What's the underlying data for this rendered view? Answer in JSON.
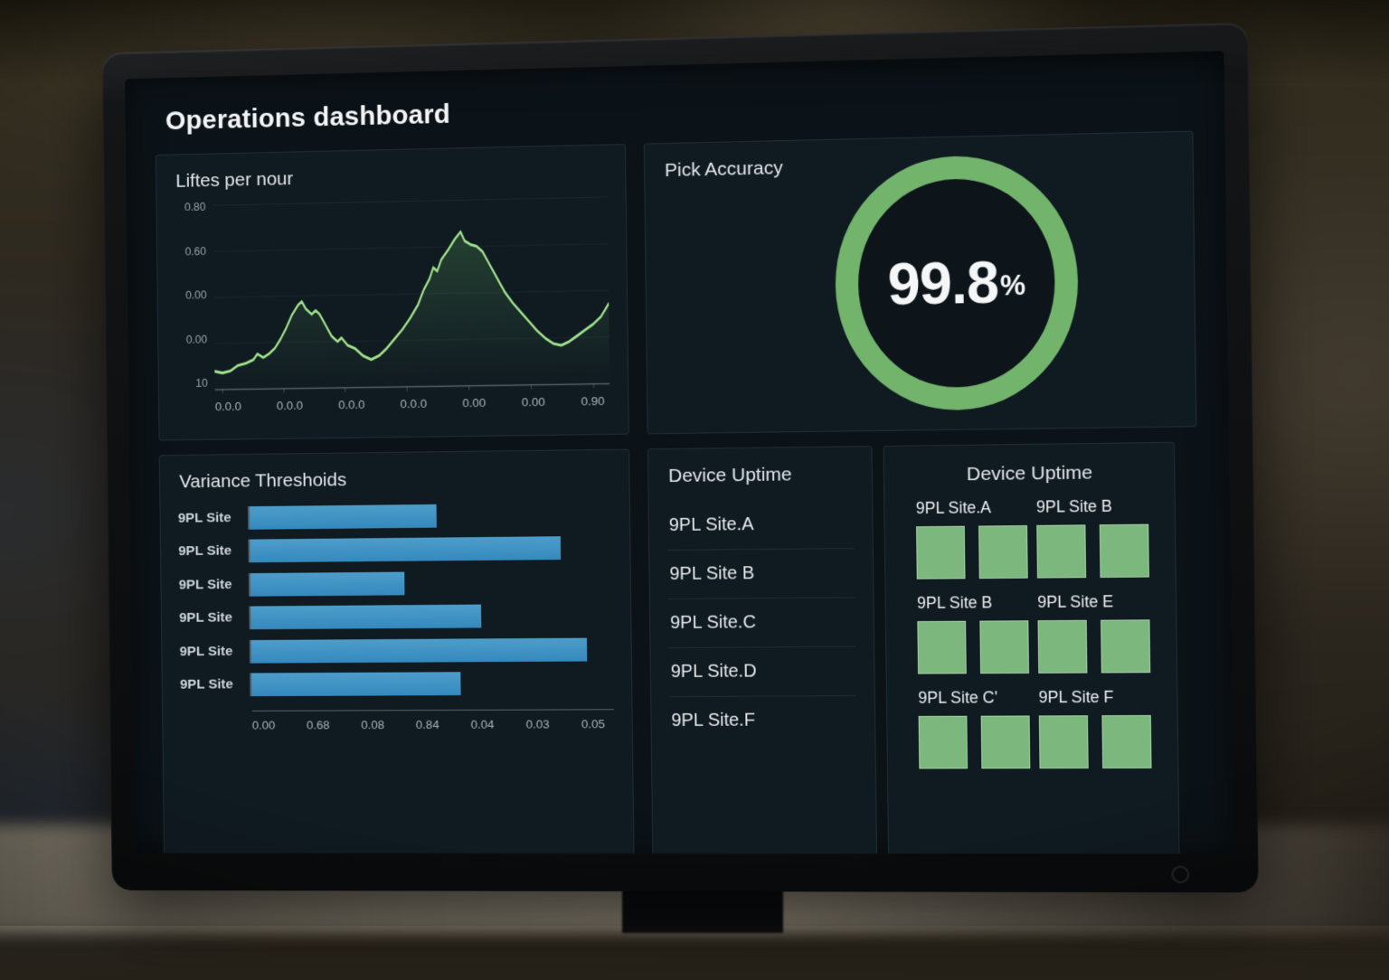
{
  "header": {
    "title": "Operations dashboard"
  },
  "theme": {
    "screen_bg": "#0c1318",
    "panel_bg": "#101a21",
    "accent_green_line": "#9fe18c",
    "accent_green_ring": "#73b46d",
    "accent_green_cell": "#7cb77d",
    "accent_blue_bar": "#3f93c6",
    "text_primary": "#f2f4f5",
    "text_muted": "#97a1a8"
  },
  "chart_data": [
    {
      "type": "line",
      "title": "Liftes per nour",
      "xlabel": "",
      "ylabel": "",
      "grid": true,
      "legend": "none",
      "line_color": "#9fe18c",
      "y_ticks": [
        "0.80",
        "0.60",
        "0.00",
        "0.00",
        "10"
      ],
      "x_ticks": [
        "0.0.0",
        "0.0.0",
        "0.0.0",
        "0.0.0",
        "0.00",
        "0.00",
        "0.90"
      ],
      "ylim": [
        0,
        1
      ],
      "points": [
        [
          0.0,
          0.1
        ],
        [
          0.02,
          0.09
        ],
        [
          0.04,
          0.1
        ],
        [
          0.06,
          0.13
        ],
        [
          0.08,
          0.14
        ],
        [
          0.1,
          0.16
        ],
        [
          0.11,
          0.19
        ],
        [
          0.125,
          0.17
        ],
        [
          0.14,
          0.19
        ],
        [
          0.155,
          0.22
        ],
        [
          0.17,
          0.27
        ],
        [
          0.185,
          0.33
        ],
        [
          0.2,
          0.4
        ],
        [
          0.215,
          0.45
        ],
        [
          0.225,
          0.47
        ],
        [
          0.235,
          0.43
        ],
        [
          0.25,
          0.4
        ],
        [
          0.26,
          0.42
        ],
        [
          0.27,
          0.4
        ],
        [
          0.285,
          0.34
        ],
        [
          0.3,
          0.28
        ],
        [
          0.315,
          0.25
        ],
        [
          0.325,
          0.27
        ],
        [
          0.34,
          0.23
        ],
        [
          0.36,
          0.21
        ],
        [
          0.38,
          0.17
        ],
        [
          0.4,
          0.15
        ],
        [
          0.42,
          0.17
        ],
        [
          0.44,
          0.21
        ],
        [
          0.46,
          0.26
        ],
        [
          0.48,
          0.31
        ],
        [
          0.5,
          0.37
        ],
        [
          0.52,
          0.44
        ],
        [
          0.535,
          0.52
        ],
        [
          0.55,
          0.58
        ],
        [
          0.56,
          0.64
        ],
        [
          0.57,
          0.62
        ],
        [
          0.58,
          0.68
        ],
        [
          0.6,
          0.74
        ],
        [
          0.615,
          0.79
        ],
        [
          0.63,
          0.83
        ],
        [
          0.64,
          0.78
        ],
        [
          0.655,
          0.76
        ],
        [
          0.67,
          0.75
        ],
        [
          0.685,
          0.72
        ],
        [
          0.7,
          0.66
        ],
        [
          0.72,
          0.58
        ],
        [
          0.74,
          0.5
        ],
        [
          0.76,
          0.44
        ],
        [
          0.78,
          0.39
        ],
        [
          0.8,
          0.34
        ],
        [
          0.82,
          0.29
        ],
        [
          0.84,
          0.25
        ],
        [
          0.86,
          0.22
        ],
        [
          0.88,
          0.21
        ],
        [
          0.9,
          0.23
        ],
        [
          0.92,
          0.26
        ],
        [
          0.94,
          0.29
        ],
        [
          0.96,
          0.32
        ],
        [
          0.98,
          0.36
        ],
        [
          1.0,
          0.43
        ]
      ]
    },
    {
      "type": "donut",
      "title": "Pick Accuracy",
      "value": "99.8",
      "unit": "%",
      "ring_color": "#73b46d"
    },
    {
      "type": "bar",
      "orientation": "horizontal",
      "title": "Variance Threshoids",
      "categories": [
        "9PL Site",
        "9PL Site",
        "9PL Site",
        "9PL Site",
        "9PL Site",
        "9PL Site"
      ],
      "values": [
        52,
        86,
        43,
        64,
        93,
        58
      ],
      "xlim": [
        0,
        100
      ],
      "x_ticks": [
        "0.00",
        "0.68",
        "0.08",
        "0.84",
        "0.04",
        "0.03",
        "0.05"
      ],
      "bar_color": "#3f93c6"
    },
    {
      "type": "table",
      "title": "Device Uptime",
      "items": [
        "9PL Site.A",
        "9PL Site B",
        "9PL Site.C",
        "9PL Site.D",
        "9PL Site.F"
      ]
    },
    {
      "type": "heatmap",
      "title": "Device Uptime",
      "cell_color": "#7cb77d",
      "groups": [
        {
          "label": "9PL Site.A",
          "cells": [
            "up",
            "up"
          ]
        },
        {
          "label": "9PL Site B",
          "cells": [
            "up",
            "up"
          ]
        },
        {
          "label": "9PL Site B",
          "cells": [
            "up",
            "up"
          ]
        },
        {
          "label": "9PL Site E",
          "cells": [
            "up",
            "up"
          ]
        },
        {
          "label": "9PL Site C'",
          "cells": [
            "up",
            "up"
          ]
        },
        {
          "label": "9PL Site F",
          "cells": [
            "up",
            "up"
          ]
        }
      ]
    }
  ]
}
